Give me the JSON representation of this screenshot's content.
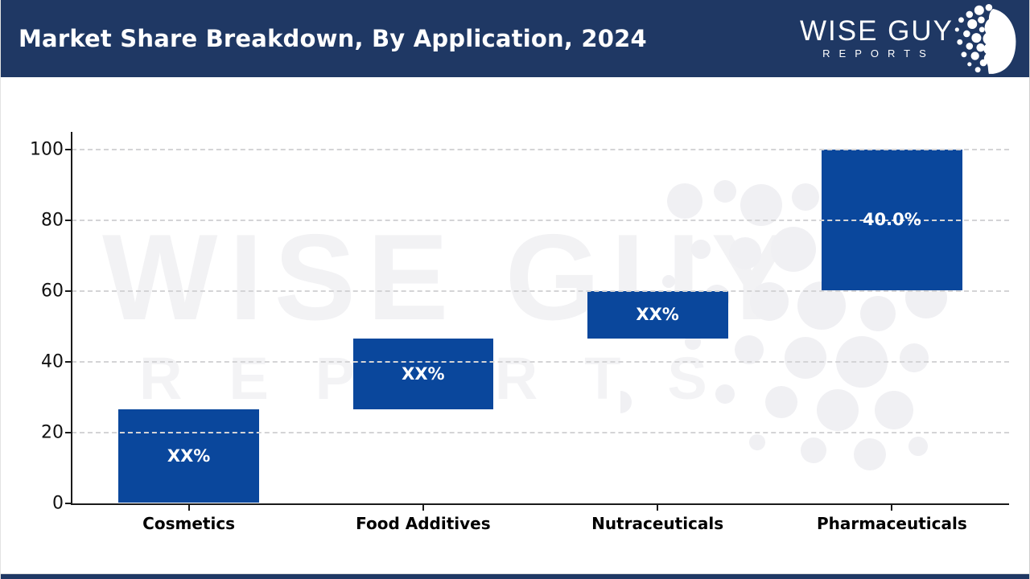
{
  "header": {
    "title": "Market Share Breakdown, By Application, 2024",
    "logo": {
      "line1": "WISE GUY",
      "line2": "REPORTS"
    },
    "bg_color": "#1f3864"
  },
  "watermark": {
    "line1": "WISE GUY",
    "line2": "REPORTS"
  },
  "colors": {
    "header_bg": "#1f3864",
    "bar": "#0a479c",
    "gridline": "#d4d4d6",
    "axis": "#1a1a1a",
    "watermark": "#f2f2f4",
    "bar_label": "#ffffff"
  },
  "chart_data": {
    "type": "bar",
    "subtype": "floating-waterfall",
    "title": "Market Share Breakdown, By Application, 2024",
    "categories": [
      "Cosmetics",
      "Food Additives",
      "Nutraceuticals",
      "Pharmaceuticals"
    ],
    "segments": [
      {
        "category": "Cosmetics",
        "start": 0,
        "end": 26.4,
        "label": "XX%"
      },
      {
        "category": "Food Additives",
        "start": 26.6,
        "end": 46.5,
        "label": "XX%"
      },
      {
        "category": "Nutraceuticals",
        "start": 46.5,
        "end": 60.0,
        "label": "XX%"
      },
      {
        "category": "Pharmaceuticals",
        "start": 60.2,
        "end": 100.0,
        "label": "40.0%"
      }
    ],
    "values_masked": true,
    "yticks": [
      0,
      20,
      40,
      60,
      80,
      100
    ],
    "ylim": [
      0,
      105
    ],
    "xlabel": "",
    "ylabel": "",
    "grid": "horizontal-dashed-over-bars",
    "legend": "none",
    "bar_color": "#0a479c"
  }
}
